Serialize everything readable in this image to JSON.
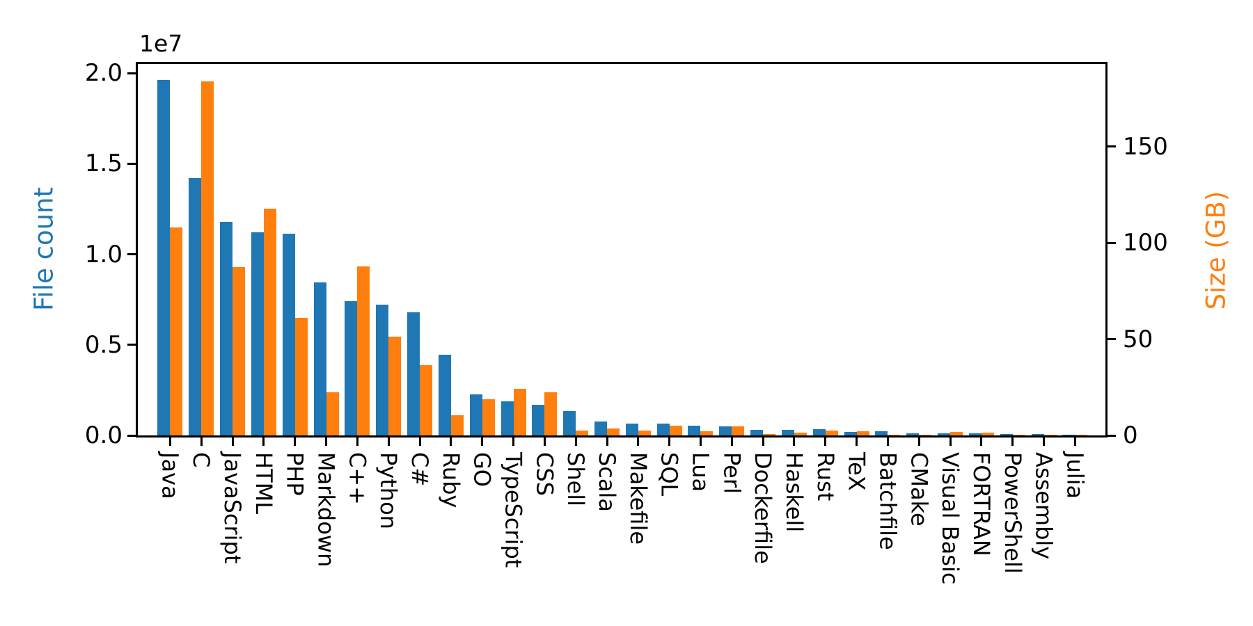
{
  "chart_data": {
    "type": "bar",
    "title": "",
    "categories": [
      "Java",
      "C",
      "JavaScript",
      "HTML",
      "PHP",
      "Markdown",
      "C++",
      "Python",
      "C#",
      "Ruby",
      "GO",
      "TypeScript",
      "CSS",
      "Shell",
      "Scala",
      "Makefile",
      "SQL",
      "Lua",
      "Perl",
      "Dockerfile",
      "Haskell",
      "Rust",
      "TeX",
      "Batchfile",
      "CMake",
      "Visual Basic",
      "FORTRAN",
      "PowerShell",
      "Assembly",
      "Julia"
    ],
    "series": [
      {
        "name": "File count",
        "axis": "left",
        "color": "#1f77b4",
        "values": [
          19600000,
          14200000,
          11800000,
          11200000,
          11150000,
          8450000,
          7400000,
          7200000,
          6800000,
          4450000,
          2250000,
          1900000,
          1700000,
          1350000,
          780000,
          640000,
          640000,
          550000,
          490000,
          320000,
          300000,
          330000,
          210000,
          230000,
          130000,
          120000,
          110000,
          80000,
          70000,
          40000
        ]
      },
      {
        "name": "Size (GB)",
        "axis": "right",
        "color": "#ff7f0e",
        "values": [
          108,
          184,
          87.5,
          118,
          61,
          22.5,
          88,
          51.5,
          36.5,
          10.5,
          18.8,
          24.2,
          22.3,
          2.5,
          3.6,
          2.4,
          5.2,
          2.2,
          4.6,
          0.6,
          1.6,
          2.4,
          2.2,
          0.2,
          0.2,
          1.8,
          1.5,
          0.3,
          0.5,
          0.15
        ]
      }
    ],
    "left_axis": {
      "label": "File count",
      "color": "#1f77b4",
      "offset_text": "1e7",
      "tick_labels": [
        "0.0",
        "0.5",
        "1.0",
        "1.5",
        "2.0"
      ],
      "tick_values": [
        0,
        5000000,
        10000000,
        15000000,
        20000000
      ],
      "range": [
        0,
        20500000
      ]
    },
    "right_axis": {
      "label": "Size (GB)",
      "color": "#ff7f0e",
      "tick_labels": [
        "0",
        "50",
        "100",
        "150"
      ],
      "tick_values": [
        0,
        50,
        100,
        150
      ],
      "range": [
        0,
        193
      ]
    },
    "grid": false,
    "legend": null
  }
}
